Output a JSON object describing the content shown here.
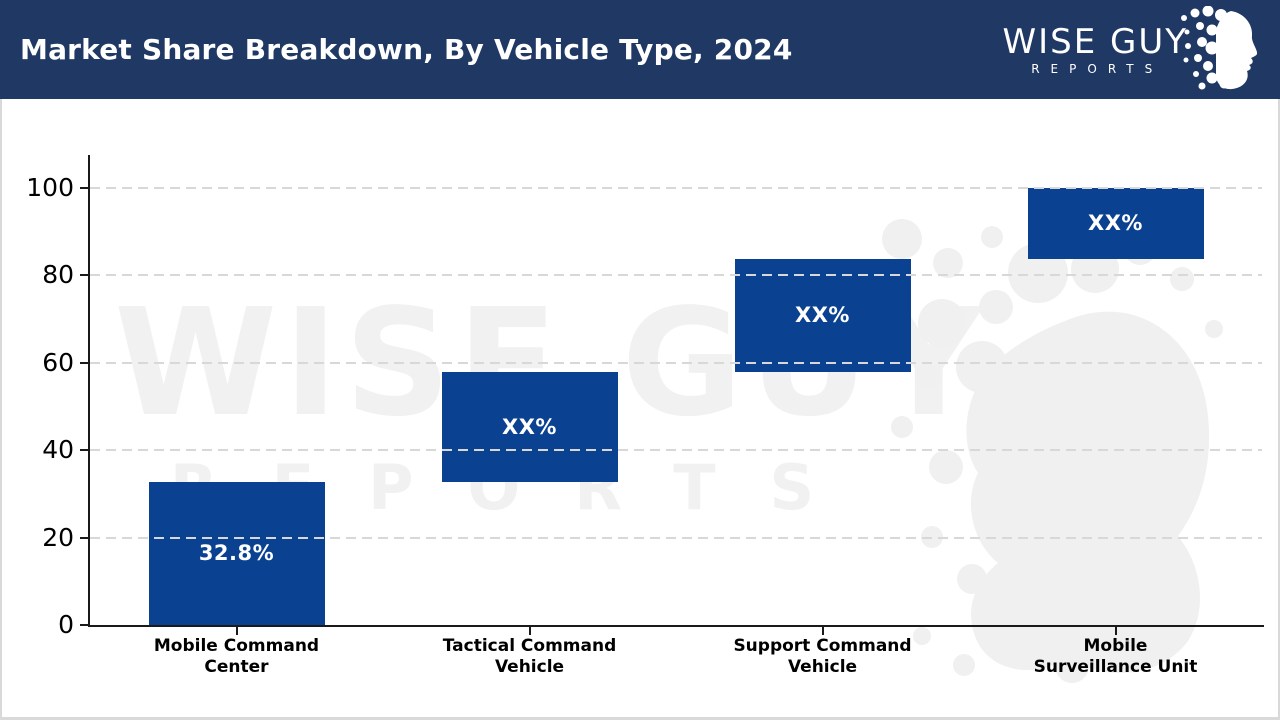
{
  "header": {
    "title": "Market Share Breakdown, By Vehicle Type, 2024",
    "logo": {
      "wordmark": "WISE GUY",
      "subtext": "REPORTS"
    }
  },
  "watermark": {
    "wordmark": "WISE GUY",
    "subtext": "REPORTS"
  },
  "colors": {
    "header_bg": "#1f3864",
    "bar_fill": "#0a4191",
    "bar_label_text": "#ffffff",
    "axis_line": "#1a1a1a",
    "tick_label_text": "#000000",
    "gridline": "#d8d8d8",
    "watermark": "#f1f1f1",
    "frame_border": "#d9d9d9",
    "title_text": "#ffffff"
  },
  "chart_data": {
    "type": "bar",
    "subtype": "waterfall",
    "title": "Market Share Breakdown, By Vehicle Type, 2024",
    "unit": "% market share",
    "categories": [
      "Mobile Command Center",
      "Tactical Command Vehicle",
      "Support Command Vehicle",
      "Mobile Surveillance Unit"
    ],
    "segments": [
      {
        "category": "Mobile Command Center",
        "axis_label": "Mobile Command\nCenter",
        "start": 0,
        "end": 32.8,
        "value_label": "32.8%"
      },
      {
        "category": "Tactical Command Vehicle",
        "axis_label": "Tactical Command\nVehicle",
        "start": 32.8,
        "end": 57.9,
        "value_label": "XX%"
      },
      {
        "category": "Support Command Vehicle",
        "axis_label": "Support Command\nVehicle",
        "start": 57.9,
        "end": 83.6,
        "value_label": "XX%"
      },
      {
        "category": "Mobile Surveillance Unit",
        "axis_label": "Mobile\nSurveillance Unit",
        "start": 83.6,
        "end": 100,
        "value_label": "XX%"
      }
    ],
    "y_ticks": [
      0,
      20,
      40,
      60,
      80,
      100
    ],
    "ylim": [
      0,
      107
    ],
    "xlabel": "",
    "ylabel": "",
    "grid": "horizontal-dashed",
    "legend": "none"
  }
}
